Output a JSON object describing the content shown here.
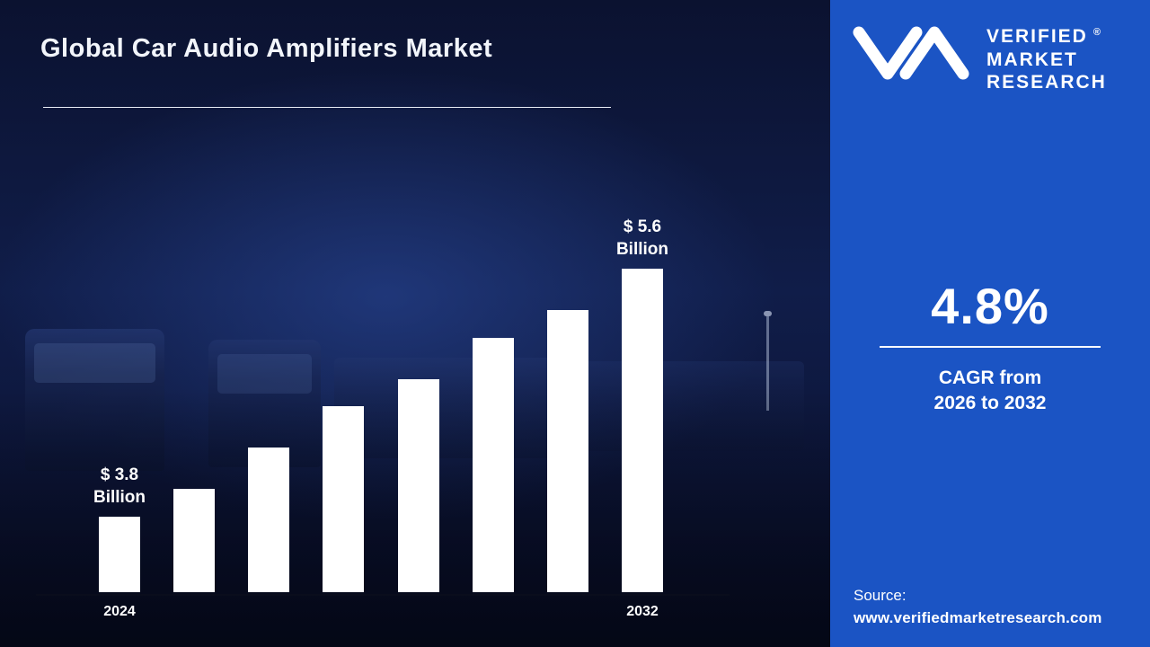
{
  "page": {
    "title": "Global Car Audio Amplifiers Market"
  },
  "brand": {
    "line1": "VERIFIED",
    "line2": "MARKET",
    "line3": "RESEARCH",
    "registered": "®"
  },
  "stats": {
    "cagr_value": "4.8%",
    "caption_line1": "CAGR from",
    "caption_line2": "2026 to 2032"
  },
  "source": {
    "label": "Source:",
    "url": "www.verifiedmarketresearch.com"
  },
  "colors": {
    "panel_blue": "#1b54c4",
    "background_navy": "#0d1533",
    "bar_white": "#ffffff",
    "axis_dark": "#0a0d1c"
  },
  "chart_data": {
    "type": "bar",
    "title": "Global Car Audio Amplifiers Market",
    "unit": "USD Billion",
    "x_labels": [
      "2024",
      "",
      "",
      "",
      "",
      "",
      "",
      "2032"
    ],
    "values": [
      3.8,
      4.0,
      4.3,
      4.6,
      4.8,
      5.1,
      5.3,
      5.6
    ],
    "ylim": [
      3.25,
      5.9
    ],
    "grid": false,
    "legend": false,
    "annotations": [
      {
        "index": 0,
        "line1": "$ 3.8",
        "line2": "Billion"
      },
      {
        "index": 7,
        "line1": "$ 5.6",
        "line2": "Billion"
      }
    ]
  }
}
